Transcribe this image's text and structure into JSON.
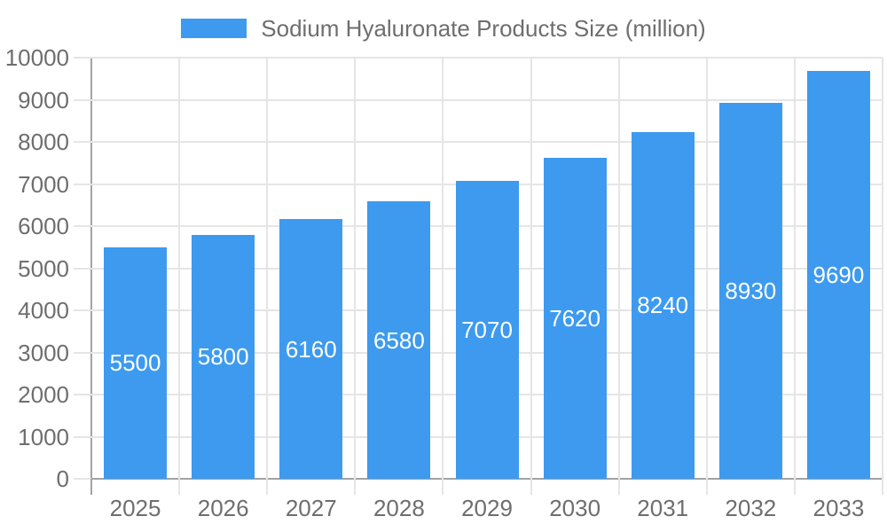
{
  "legend": {
    "label": "Sodium Hyaluronate Products Size (million)"
  },
  "colors": {
    "bar": "#3D9AEF",
    "axis_text": "#6E6E6E",
    "grid": "#E5E5E5",
    "axis_line": "#A3A3A3",
    "bar_label": "#FFFFFF",
    "background": "#FFFFFF"
  },
  "chart_data": {
    "type": "bar",
    "title": "Sodium Hyaluronate Products Size (million)",
    "categories": [
      "2025",
      "2026",
      "2027",
      "2028",
      "2029",
      "2030",
      "2031",
      "2032",
      "2033"
    ],
    "series": [
      {
        "name": "Sodium Hyaluronate Products Size (million)",
        "values": [
          5500,
          5800,
          6160,
          6580,
          7070,
          7620,
          8240,
          8930,
          9690
        ]
      }
    ],
    "xlabel": "",
    "ylabel": "",
    "ylim": [
      0,
      10000
    ],
    "ytick_step": 1000,
    "grid": true,
    "legend_position": "top",
    "value_labels": "inside-center"
  }
}
